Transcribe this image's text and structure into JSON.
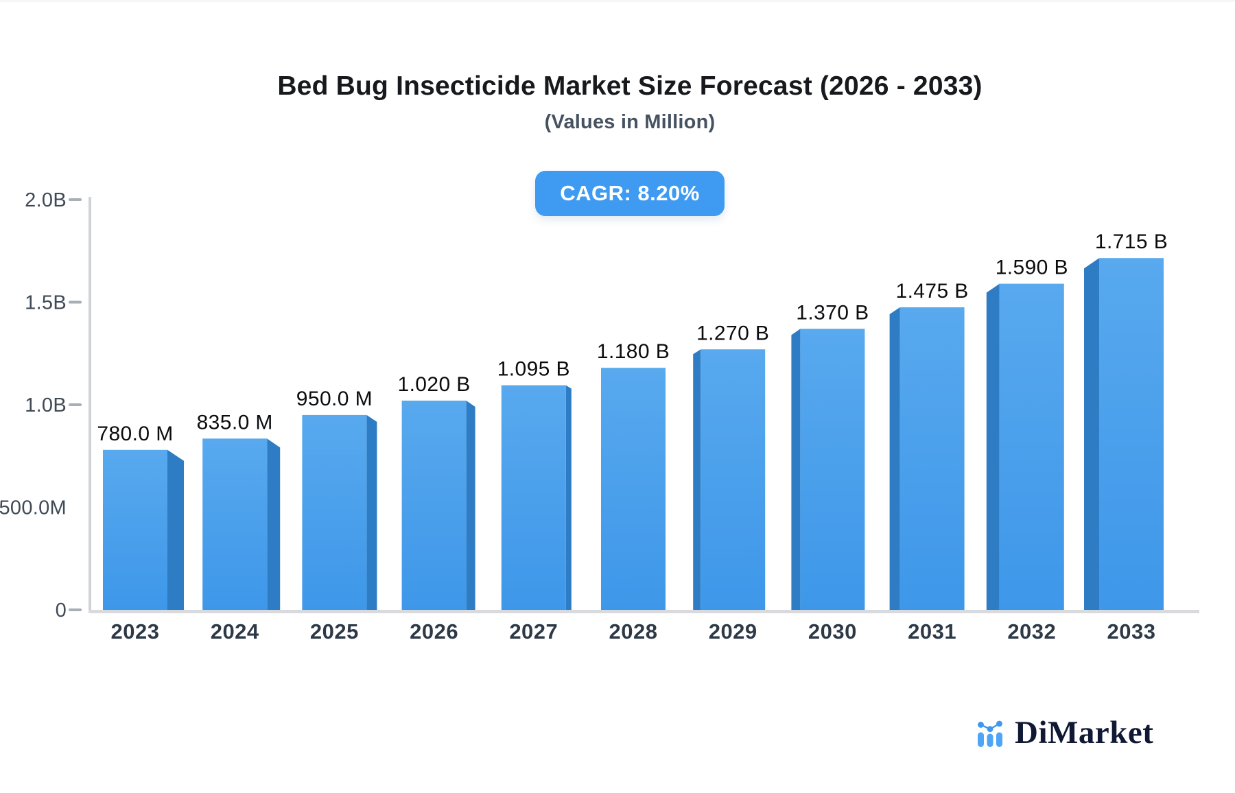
{
  "header": {
    "title": "Bed Bug Insecticide Market Size Forecast (2026 - 2033)",
    "subtitle": "(Values in Million)",
    "badge_label": "CAGR: 8.20%"
  },
  "brand": {
    "name": "DiMarket"
  },
  "colors": {
    "bar_front_top": "#58a9ee",
    "bar_front_bottom": "#3e97e9",
    "bar_side": "#2e7cc4",
    "badge_bg": "#3e9bf1",
    "axis_line": "#cfd3d7",
    "base_line": "#d8dadd",
    "tick_dash": "#a8aeb5",
    "y_label": "#3f4a57",
    "x_label": "#2e3947",
    "value_label": "#0b0c0e",
    "logo_bar_blue": "#4fa5f5",
    "logo_dot_blue": "#3e97f0",
    "logo_text": "#0f1933"
  },
  "chart_data": {
    "type": "bar",
    "title": "Bed Bug Insecticide Market Size Forecast (2026 - 2033)",
    "subtitle": "(Values in Million)",
    "annotation": "CAGR: 8.20%",
    "categories": [
      "2023",
      "2024",
      "2025",
      "2026",
      "2027",
      "2028",
      "2029",
      "2030",
      "2031",
      "2032",
      "2033"
    ],
    "values_millions": [
      780,
      835,
      950,
      1020,
      1095,
      1180,
      1270,
      1370,
      1475,
      1590,
      1715
    ],
    "bar_labels": [
      "780.0 M",
      "835.0 M",
      "950.0 M",
      "1.020 B",
      "1.095 B",
      "1.180 B",
      "1.270 B",
      "1.370 B",
      "1.475 B",
      "1.590 B",
      "1.715 B"
    ],
    "ylabel": "",
    "xlabel": "",
    "ylim": [
      0,
      2000
    ],
    "grid": false,
    "legend": null,
    "y_ticks": [
      {
        "label": "2.0B",
        "value": 2000,
        "dash": true
      },
      {
        "label": "1.5B",
        "value": 1500,
        "dash": true
      },
      {
        "label": "1.0B",
        "value": 1000,
        "dash": true
      },
      {
        "label": "500.0M",
        "value": 500,
        "dash": false
      },
      {
        "label": "0",
        "value": 0,
        "dash": true
      }
    ]
  }
}
